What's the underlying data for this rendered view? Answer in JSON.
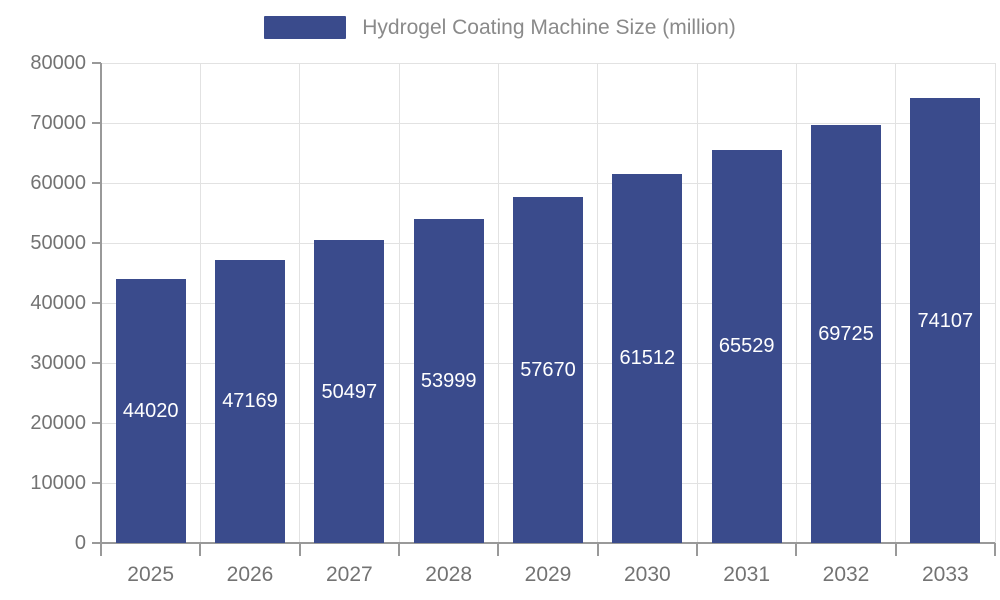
{
  "legend": {
    "label": "Hydrogel Coating Machine Size (million)"
  },
  "chart_data": {
    "type": "bar",
    "title": "Hydrogel Coating Machine Size (million)",
    "categories": [
      "2025",
      "2026",
      "2027",
      "2028",
      "2029",
      "2030",
      "2031",
      "2032",
      "2033"
    ],
    "values": [
      44020,
      47169,
      50497,
      53999,
      57670,
      61512,
      65529,
      69725,
      74107
    ],
    "xlabel": "",
    "ylabel": "",
    "ylim": [
      0,
      80000
    ],
    "ytick_step": 10000,
    "ytick_labels": [
      "0",
      "10000",
      "20000",
      "30000",
      "40000",
      "50000",
      "60000",
      "70000",
      "80000"
    ],
    "grid": "horizontal and vertical light gridlines; ticks at category boundaries",
    "legend_position": "top-center",
    "value_label_position": "centered inside bars",
    "colors": {
      "bar": "#3a4b8c",
      "value_label": "#ffffff",
      "axis": "#999999",
      "gridline": "#e2e2e2",
      "tick_label": "#737373",
      "legend_text": "#8a8a8a",
      "background": "#ffffff"
    }
  }
}
